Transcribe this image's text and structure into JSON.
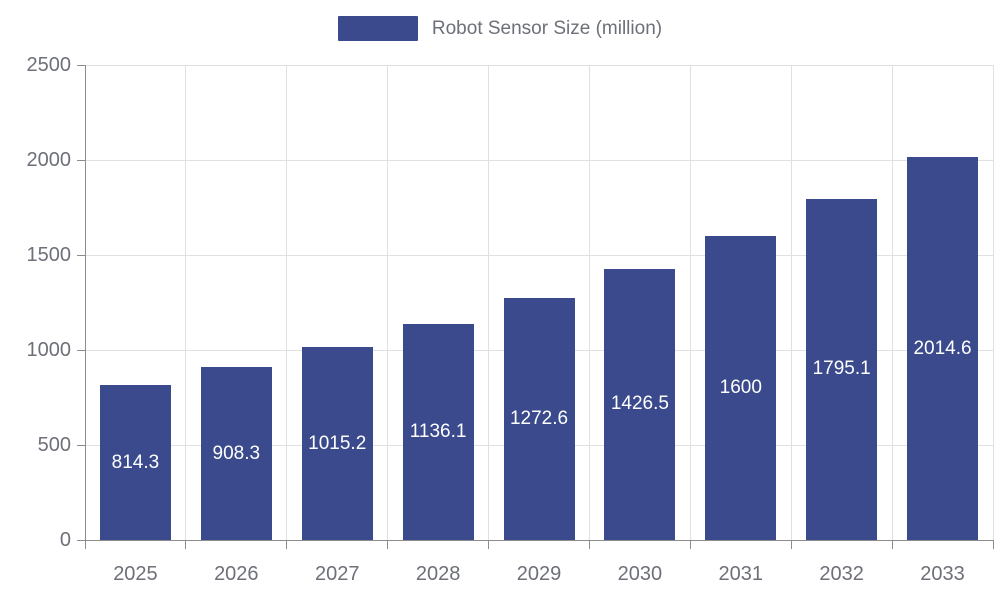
{
  "legend": {
    "label": "Robot Sensor Size (million)"
  },
  "chart_data": {
    "type": "bar",
    "title": "Robot Sensor Size (million)",
    "categories": [
      "2025",
      "2026",
      "2027",
      "2028",
      "2029",
      "2030",
      "2031",
      "2032",
      "2033"
    ],
    "series": [
      {
        "name": "Robot Sensor Size (million)",
        "values": [
          814.3,
          908.3,
          1015.2,
          1136.1,
          1272.6,
          1426.5,
          1600,
          1795.1,
          2014.6
        ]
      }
    ],
    "value_labels": [
      "814.3",
      "908.3",
      "1015.2",
      "1136.1",
      "1272.6",
      "1426.5",
      "1600",
      "1795.1",
      "2014.6"
    ],
    "xlabel": "",
    "ylabel": "",
    "ylim": [
      0,
      2500
    ],
    "y_ticks": [
      0,
      500,
      1000,
      1500,
      2000,
      2500
    ],
    "grid": true,
    "legend_position": "top-center",
    "colors": {
      "bar": "#3A4A8C",
      "bar_label": "#FFFFFF",
      "axis_line": "#8C8C8C",
      "grid_line": "#E0E0E0",
      "tick_text": "#6E7079"
    }
  }
}
